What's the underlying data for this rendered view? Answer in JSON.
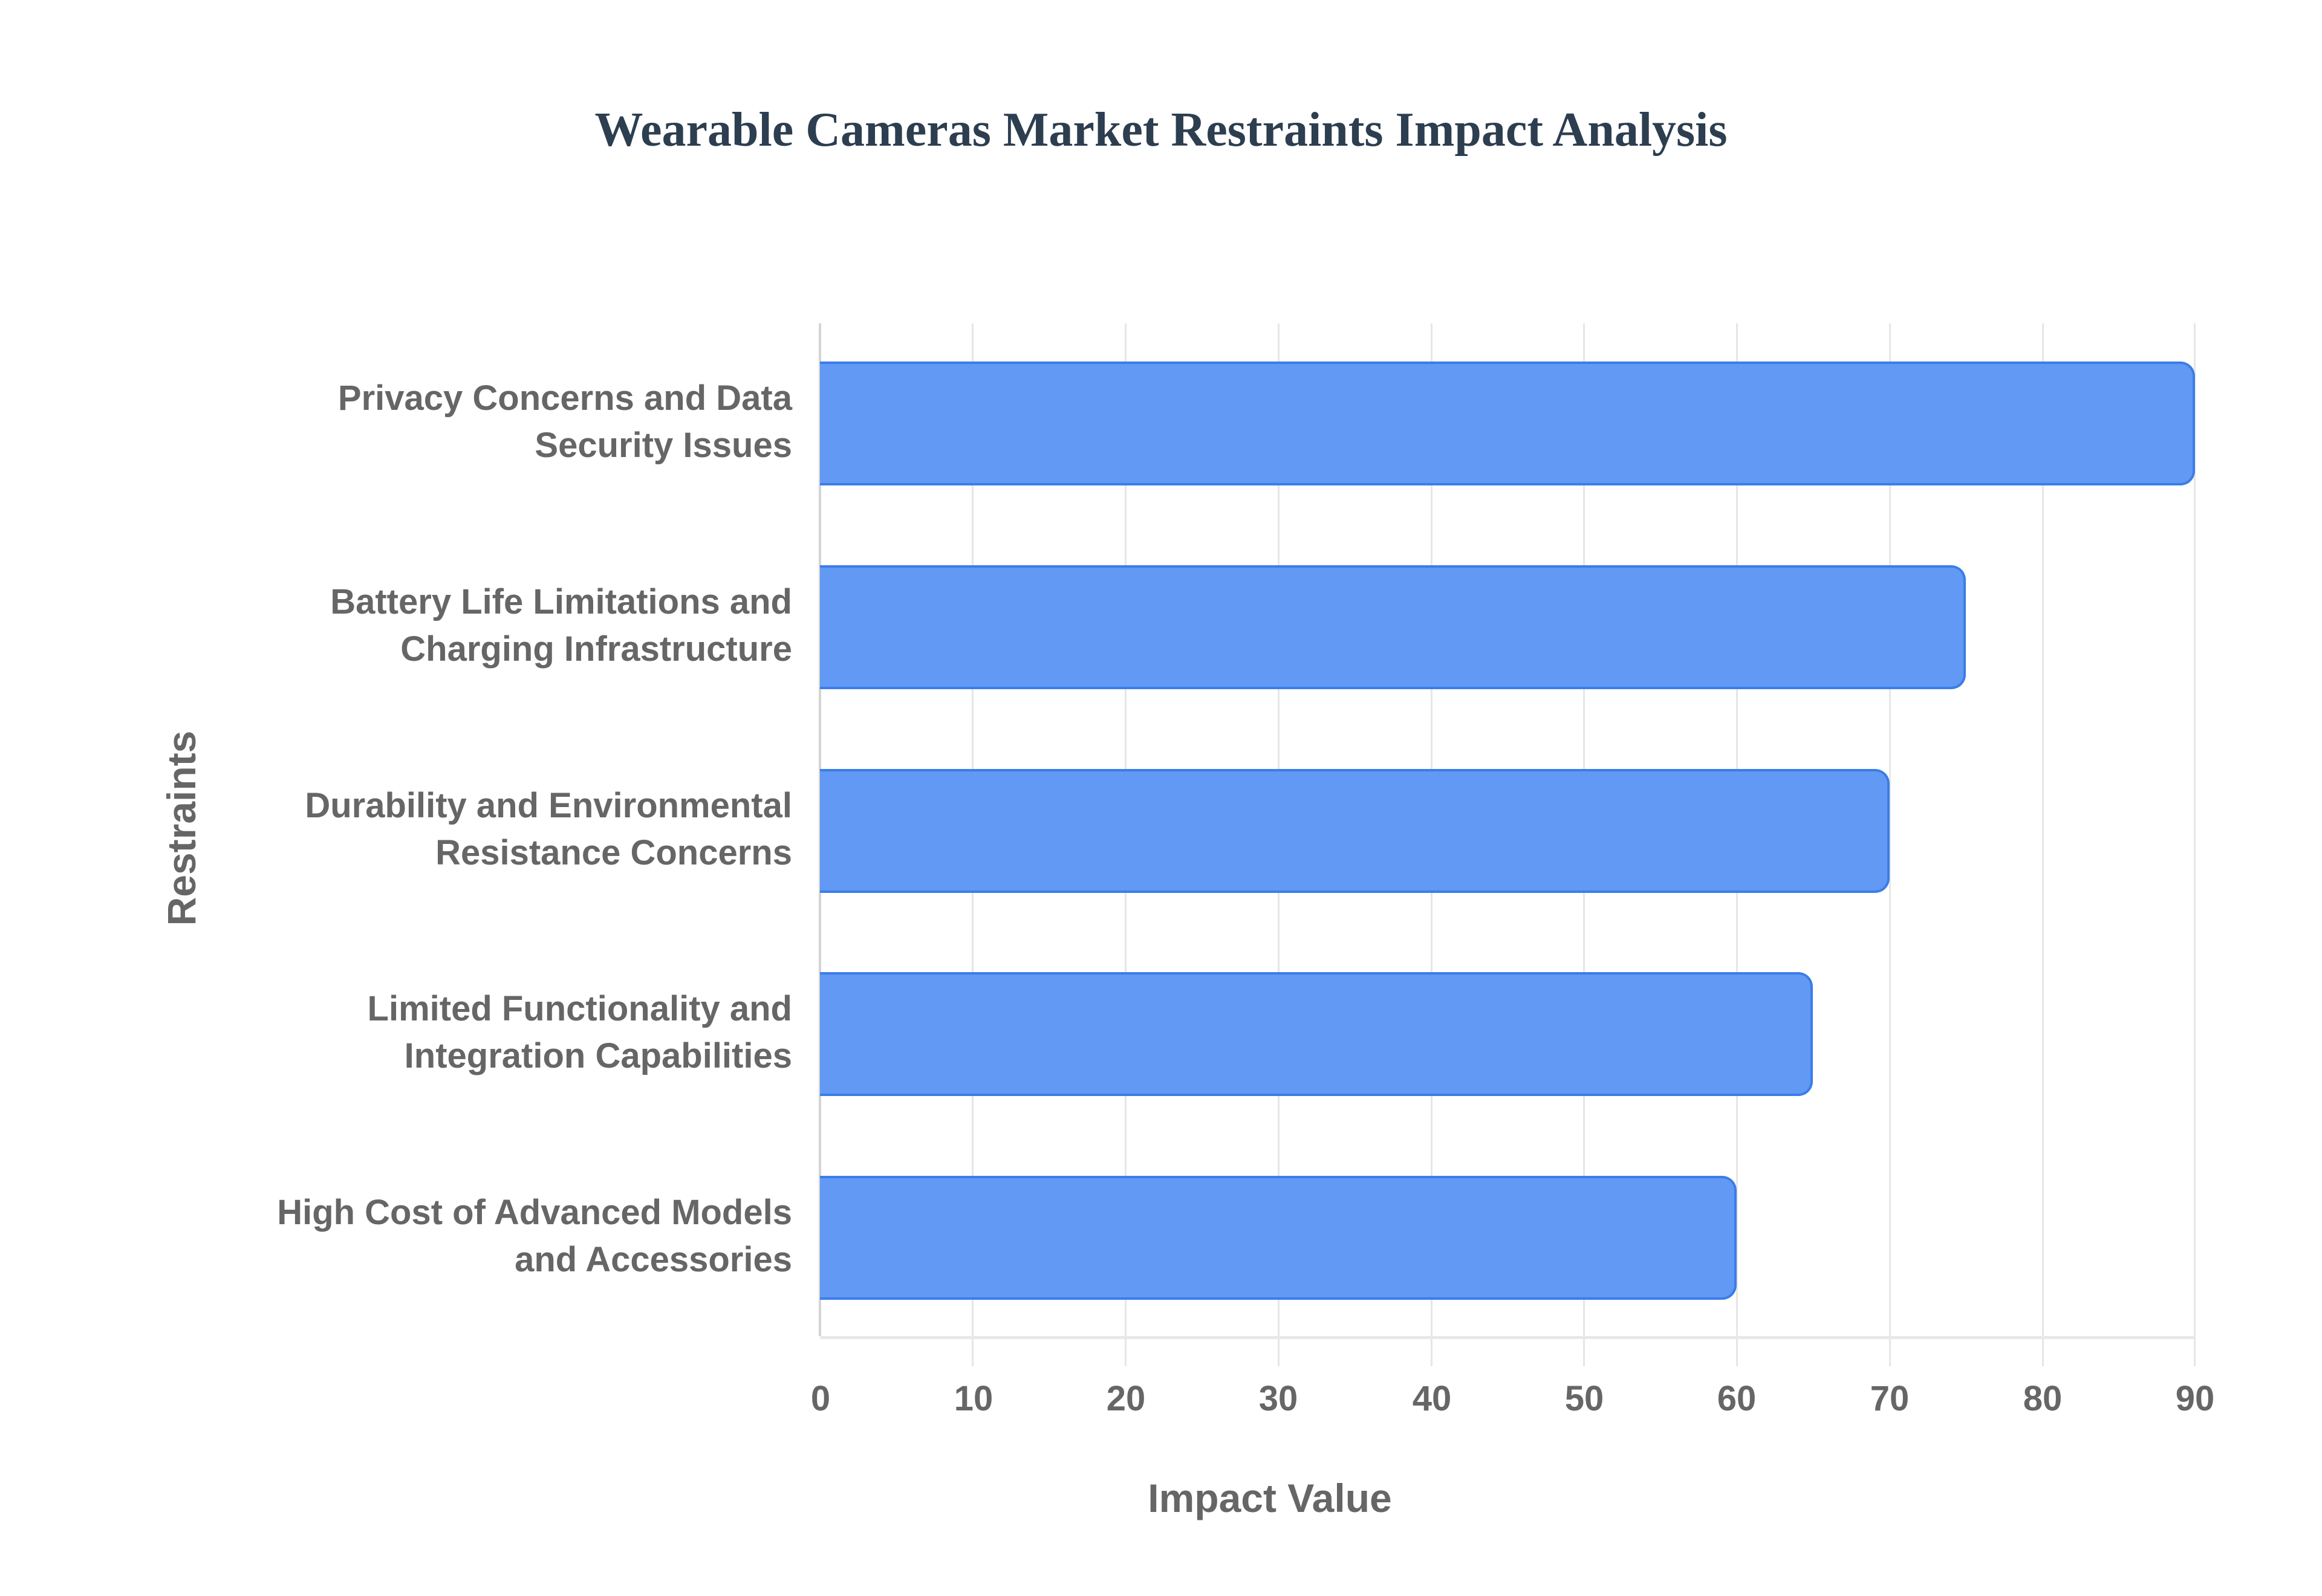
{
  "chart_data": {
    "type": "bar",
    "orientation": "horizontal",
    "title": "Wearable Cameras Market Restraints Impact Analysis",
    "xlabel": "Impact Value",
    "ylabel": "Restraints",
    "categories": [
      "Privacy Concerns and Data Security Issues",
      "Battery Life Limitations and Charging Infrastructure",
      "Durability and Environmental Resistance Concerns",
      "Limited Functionality and Integration Capabilities",
      "High Cost of Advanced Models and Accessories"
    ],
    "category_lines": [
      [
        "Privacy Concerns and Data",
        "Security Issues"
      ],
      [
        "Battery Life Limitations and",
        "Charging Infrastructure"
      ],
      [
        "Durability and Environmental",
        "Resistance Concerns"
      ],
      [
        "Limited Functionality and",
        "Integration Capabilities"
      ],
      [
        "High Cost of Advanced Models",
        "and Accessories"
      ]
    ],
    "values": [
      90,
      75,
      70,
      65,
      60
    ],
    "xlim": [
      0,
      90
    ],
    "xticks": [
      "0",
      "10",
      "20",
      "30",
      "40",
      "50",
      "60",
      "70",
      "80",
      "90"
    ],
    "grid": true,
    "legend": null,
    "colors": {
      "bar_fill": "#6199f5",
      "bar_border": "#3b7de8",
      "title": "#2c3e50",
      "axis_text": "#666666",
      "grid": "#e6e6e6"
    }
  }
}
